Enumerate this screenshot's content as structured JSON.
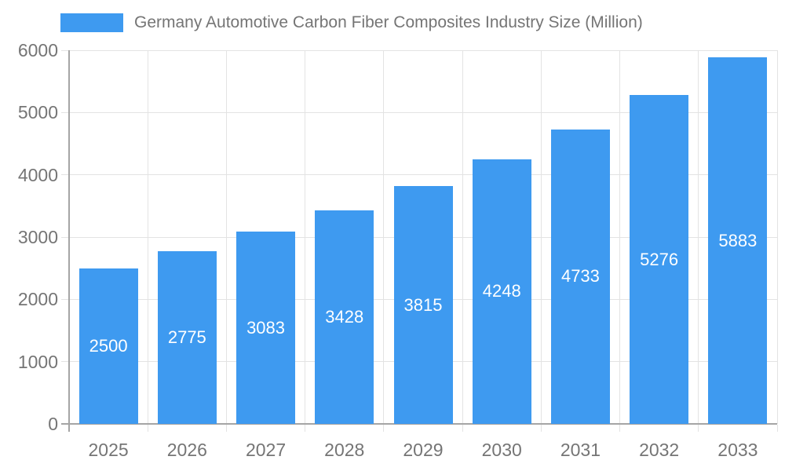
{
  "legend": {
    "items": [
      {
        "label": "Germany Automotive Carbon Fiber Composites Industry Size (Million)",
        "color": "#3E9AF0"
      }
    ]
  },
  "chart_data": {
    "type": "bar",
    "title": "Germany Automotive Carbon Fiber Composites Industry Size (Million)",
    "categories": [
      "2025",
      "2026",
      "2027",
      "2028",
      "2029",
      "2030",
      "2031",
      "2032",
      "2033"
    ],
    "values": [
      2500,
      2775,
      3083,
      3428,
      3815,
      4248,
      4733,
      5276,
      5883
    ],
    "xlabel": "",
    "ylabel": "",
    "ylim": [
      0,
      6000
    ],
    "y_ticks": [
      0,
      1000,
      2000,
      3000,
      4000,
      5000,
      6000
    ],
    "grid": true,
    "legend_position": "top-left",
    "bar_labels": "inside-center",
    "colors": {
      "bar": "#3E9AF0",
      "bar_label": "#FFFFFF",
      "grid": "#E3E3E3",
      "axis": "#A5A5A5",
      "tick_label": "#757575",
      "legend_text": "#757575",
      "background": "#FFFFFF"
    }
  }
}
